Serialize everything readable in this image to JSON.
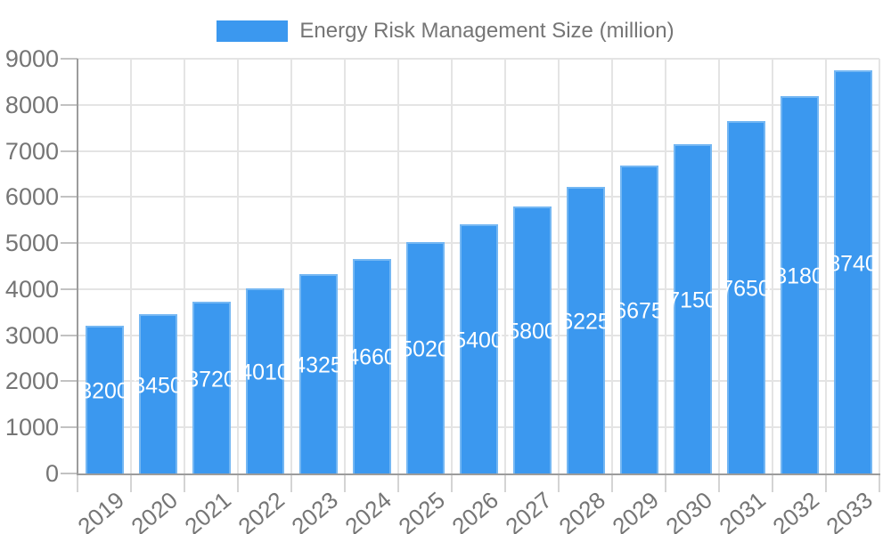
{
  "legend": {
    "label": "Energy Risk Management Size (million)"
  },
  "chart_data": {
    "type": "bar",
    "title": "Energy Risk Management Size (million)",
    "categories": [
      "2019",
      "2020",
      "2021",
      "2022",
      "2023",
      "2024",
      "2025",
      "2026",
      "2027",
      "2028",
      "2029",
      "2030",
      "2031",
      "2032",
      "2033"
    ],
    "values": [
      3200,
      3450,
      3720,
      4010,
      4325,
      4660,
      5020,
      5400,
      5800,
      6225,
      6675,
      7150,
      7650,
      8180,
      8740
    ],
    "xlabel": "",
    "ylabel": "",
    "ylim": [
      0,
      9000
    ],
    "yticks": [
      0,
      1000,
      2000,
      3000,
      4000,
      5000,
      6000,
      7000,
      8000,
      9000
    ],
    "grid": true,
    "legend_position": "top",
    "x_label_rotation": -40,
    "bar_color": "#3b98ef",
    "bar_border_color": "#74b7f3",
    "value_label_color": "#ffffff",
    "axis_text_color": "#757575",
    "grid_color": "#e4e4e4",
    "axis_line_color": "#9c9c9c"
  }
}
